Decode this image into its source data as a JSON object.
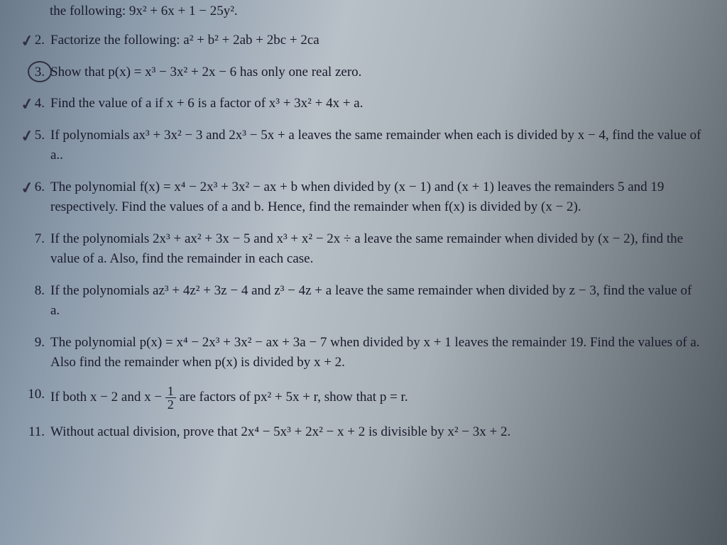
{
  "background": {
    "gradient_colors": [
      "#6a7a8a",
      "#8a9aaa",
      "#b8c0c8",
      "#a8b0b8",
      "#707880",
      "#505860"
    ],
    "text_color": "#1a1a2a",
    "font_family": "Times New Roman, serif",
    "base_fontsize": 19
  },
  "partial_line": "the following: 9x² + 6x + 1 − 25y².",
  "questions": [
    {
      "num": "2.",
      "mark": "checked",
      "text": "Factorize the following: a² + b² + 2ab + 2bc + 2ca"
    },
    {
      "num": "3.",
      "mark": "circled",
      "text": "Show that p(x) = x³ − 3x² + 2x − 6 has only one real zero."
    },
    {
      "num": "4.",
      "mark": "checked",
      "text": "Find the value of a if x + 6 is a factor of x³ + 3x² + 4x + a."
    },
    {
      "num": "5.",
      "mark": "checked",
      "text": "If polynomials ax³ + 3x² − 3 and 2x³ − 5x + a leaves the same remainder when each is divided by x − 4, find the value of a.."
    },
    {
      "num": "6.",
      "mark": "checked",
      "text": "The polynomial f(x) = x⁴ − 2x³ + 3x² − ax + b when divided by (x − 1) and (x + 1) leaves the remainders 5 and 19 respectively. Find the values of a and b. Hence, find the remainder when f(x) is divided by (x − 2)."
    },
    {
      "num": "7.",
      "mark": "",
      "text": "If the polynomials 2x³ + ax² + 3x − 5 and x³ + x² − 2x ÷ a leave the same remainder when divided by (x − 2), find the value of a. Also, find the remainder in each case."
    },
    {
      "num": "8.",
      "mark": "",
      "text": "If the polynomials az³ + 4z² + 3z − 4 and z³ − 4z + a leave the same remainder when divided by z − 3, find the value of a."
    },
    {
      "num": "9.",
      "mark": "",
      "text": "The polynomial p(x) = x⁴ − 2x³ + 3x² − ax + 3a − 7 when divided by x + 1 leaves the remainder 19. Find the values of a. Also find the remainder when p(x) is divided by x + 2."
    },
    {
      "num": "10.",
      "mark": "",
      "text_pre": "If both x − 2 and x − ",
      "frac_num": "1",
      "frac_den": "2",
      "text_post": " are factors of px² + 5x + r, show that p = r."
    },
    {
      "num": "11.",
      "mark": "",
      "text": "Without actual division, prove that 2x⁴ − 5x³ + 2x² − x + 2 is divisible by x² − 3x + 2."
    }
  ]
}
